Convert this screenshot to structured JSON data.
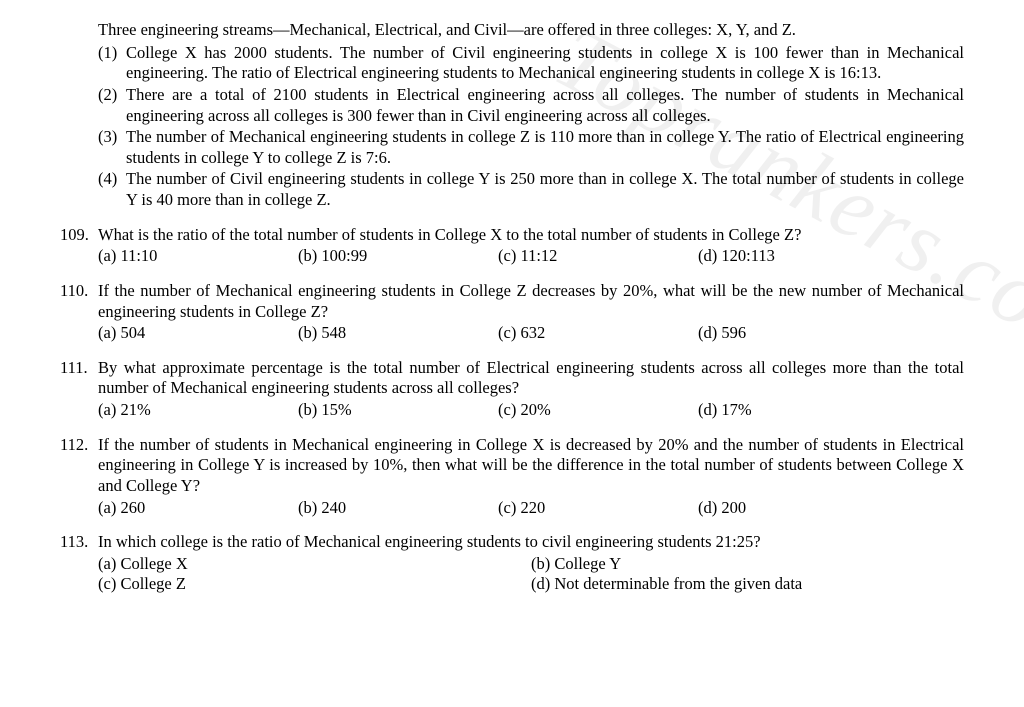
{
  "intro": "Three engineering streams—Mechanical, Electrical, and Civil—are offered in three colleges: X, Y, and Z.",
  "statements": [
    {
      "num": "(1)",
      "text": "College X has 2000 students. The number of Civil engineering students in college X is 100 fewer than in Mechanical engineering. The ratio of Electrical engineering students to Mechanical engineering students in college X is 16:13."
    },
    {
      "num": "(2)",
      "text": "There are a total of 2100 students in Electrical engineering across all colleges. The number of students in Mechanical engineering across all colleges is 300 fewer than in Civil engineering across all colleges."
    },
    {
      "num": "(3)",
      "text": "The number of Mechanical engineering students in college Z is 110 more than in college Y. The ratio of Electrical engineering students in college Y to college Z is 7:6."
    },
    {
      "num": "(4)",
      "text": "The number of Civil engineering students in college Y is 250 more than in college X. The total number of students in college Y is 40 more than in college Z."
    }
  ],
  "questions": [
    {
      "num": "109.",
      "text": "What is the ratio of the total number of students in College X to the total number of students in College Z?",
      "opts": [
        "(a) 11:10",
        "(b) 100:99",
        "(c) 11:12",
        "(d) 120:113"
      ],
      "layout": "four"
    },
    {
      "num": "110.",
      "text": "If the number of Mechanical engineering students in College Z decreases by 20%, what will be the new number of Mechanical engineering students in College Z?",
      "opts": [
        "(a) 504",
        "(b) 548",
        "(c) 632",
        "(d) 596"
      ],
      "layout": "four"
    },
    {
      "num": "111.",
      "text": "By what approximate percentage is the total number of Electrical engineering students across all colleges more than the total number of Mechanical engineering students across all colleges?",
      "opts": [
        "(a) 21%",
        "(b) 15%",
        "(c) 20%",
        "(d) 17%"
      ],
      "layout": "four"
    },
    {
      "num": "112.",
      "text": "If the number of students in Mechanical engineering in College X is decreased by 20% and the number of students in Electrical engineering in College Y is increased by 10%, then what will be the difference in the total number of students between College X and College Y?",
      "opts": [
        "(a) 260",
        "(b) 240",
        "(c) 220",
        "(d) 200"
      ],
      "layout": "four"
    },
    {
      "num": "113.",
      "text": "In which college is the ratio of Mechanical engineering students to civil engineering students 21:25?",
      "opts": [
        "(a) College X",
        "(b) College Y",
        "(c) College Z",
        "(d) Not determinable from the given data"
      ],
      "layout": "two"
    }
  ],
  "watermark": "Toprankers.com"
}
